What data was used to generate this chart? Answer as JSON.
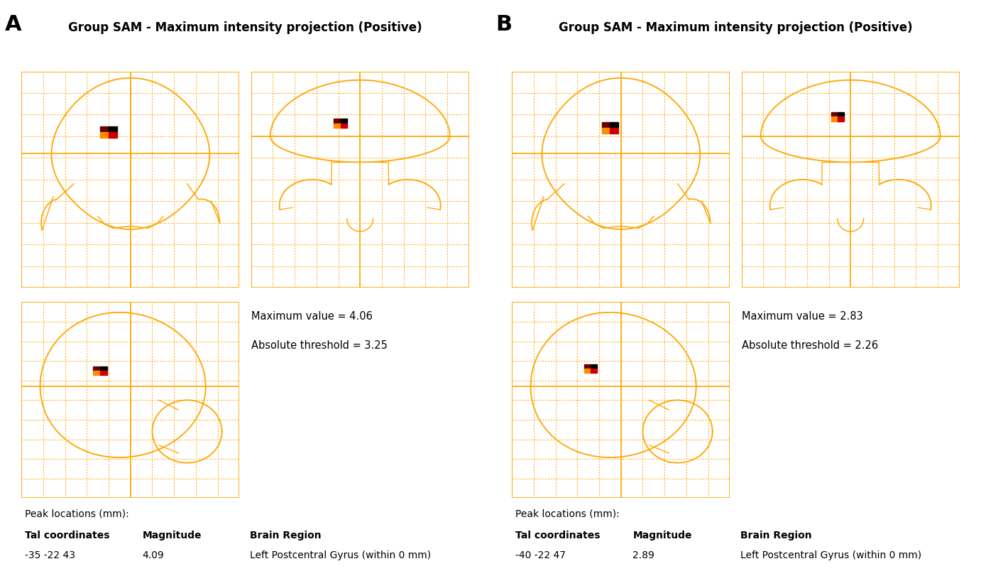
{
  "panel_A": {
    "label": "A",
    "title": "Group SAM - Maximum intensity projection (Positive)",
    "max_value": "Maximum value = 4.06",
    "abs_threshold": "Absolute threshold = 3.25",
    "peak_header": "Peak locations (mm):",
    "col1_header": "Tal coordinates",
    "col2_header": "Magnitude",
    "col3_header": "Brain Region",
    "col1_val": "-35 -22 43",
    "col2_val": "4.09",
    "col3_val": "Left Postcentral Gyrus (within 0 mm)"
  },
  "panel_B": {
    "label": "B",
    "title": "Group SAM - Maximum intensity projection (Positive)",
    "max_value": "Maximum value = 2.83",
    "abs_threshold": "Absolute threshold = 2.26",
    "peak_header": "Peak locations (mm):",
    "col1_header": "Tal coordinates",
    "col2_header": "Magnitude",
    "col3_header": "Brain Region",
    "col1_val": "-40 -22 47",
    "col2_val": "2.89",
    "col3_val": "Left Postcentral Gyrus (within 0 mm)"
  },
  "bg_color": "#ffffff",
  "brain_color": "#FFA500",
  "label_fontsize": 22,
  "title_fontsize": 12,
  "text_fontsize": 10.5,
  "annot_fontsize": 10
}
